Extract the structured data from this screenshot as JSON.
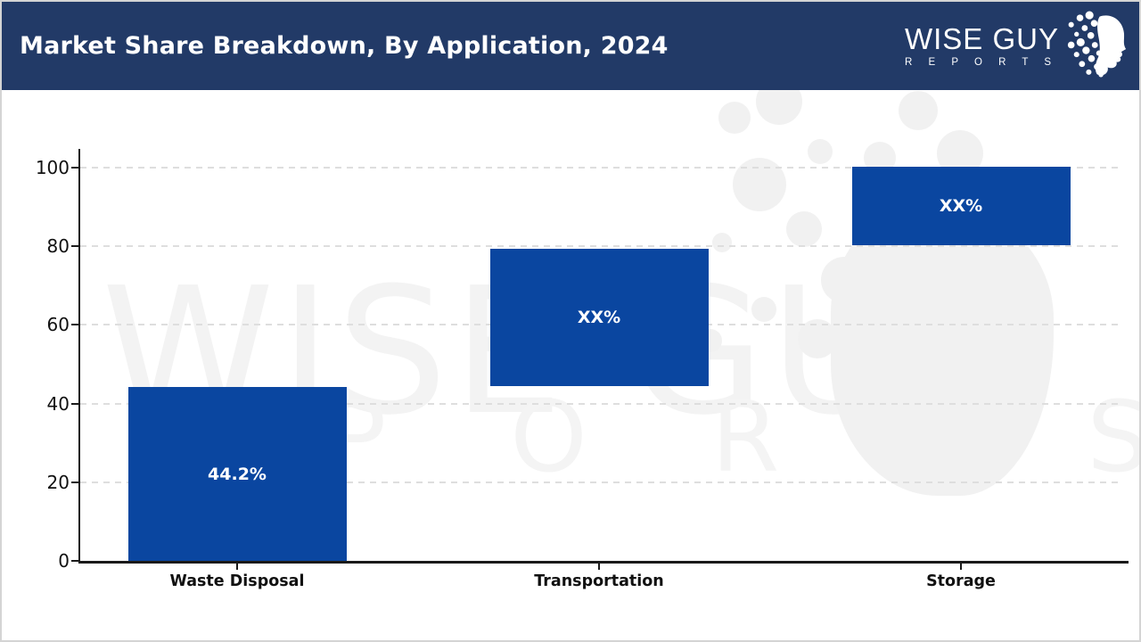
{
  "header": {
    "title": "Market Share Breakdown, By Application, 2024",
    "bg_color": "#223A67",
    "logo": {
      "line1": "WISE GUY",
      "line2": "R E P O R T S"
    }
  },
  "watermark": {
    "line1": "WISE GUY",
    "line2": "P O R T S"
  },
  "chart_data": {
    "type": "bar",
    "subtype": "waterfall",
    "title": "Market Share Breakdown, By Application, 2024",
    "categories": [
      "Waste Disposal",
      "Transportation",
      "Storage"
    ],
    "bars": [
      {
        "category": "Waste Disposal",
        "start": 0,
        "end": 44.2,
        "label": "44.2%"
      },
      {
        "category": "Transportation",
        "start": 44.4,
        "end": 79.4,
        "label": "XX%"
      },
      {
        "category": "Storage",
        "start": 80.2,
        "end": 100.2,
        "label": "XX%"
      }
    ],
    "yticks": [
      0,
      20,
      40,
      60,
      80,
      100
    ],
    "ylim": [
      0,
      105
    ],
    "xlabel": "",
    "ylabel": "",
    "grid": true,
    "grid_style": "dashed",
    "legend": false,
    "bar_color": "#0A46A0",
    "label_color": "#ffffff",
    "axis_color": "#1a1a1a",
    "grid_color": "#dedede"
  }
}
